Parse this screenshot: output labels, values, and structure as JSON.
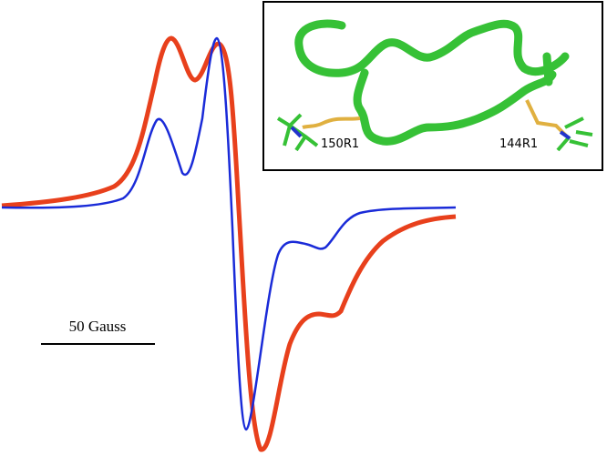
{
  "scale_bar": {
    "label": "50 Gauss"
  },
  "inset": {
    "labels": [
      "150R1",
      "144R1"
    ]
  }
}
